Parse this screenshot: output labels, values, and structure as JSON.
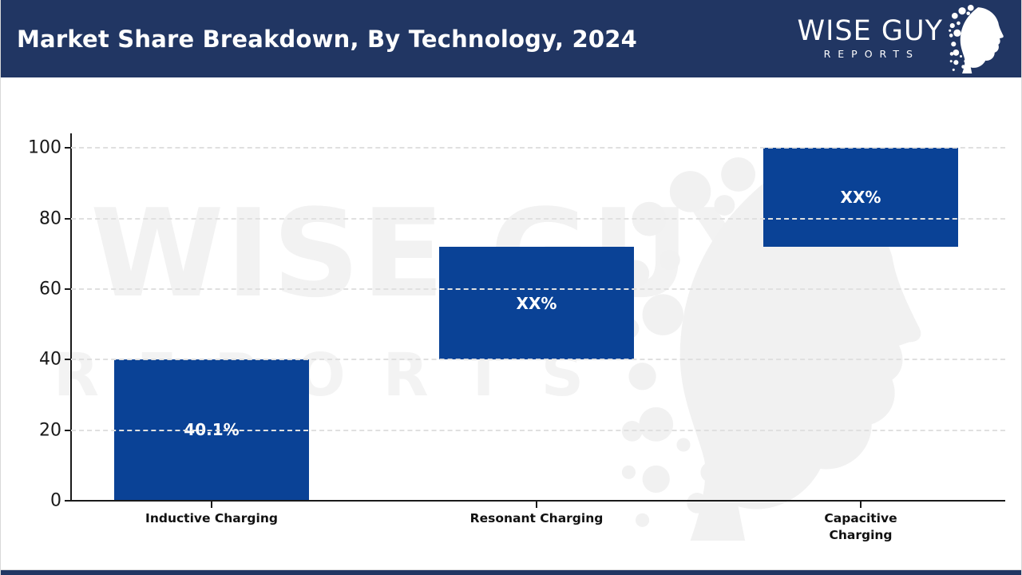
{
  "header": {
    "title": "Market Share Breakdown, By Technology, 2024",
    "brand": {
      "name": "WISE GUY",
      "subtitle": "REPORTS"
    }
  },
  "watermark": {
    "line1": "WISE GUY",
    "line2": "REPORTS"
  },
  "colors": {
    "header_navy": "#213663",
    "bar_blue": "#0a4296",
    "gridline_gray": "#e0e0e0",
    "watermark_gray": "#f2f2f2"
  },
  "chart_data": {
    "type": "bar",
    "subtype": "floating-stacked-waterfall",
    "title": "Market Share Breakdown, By Technology, 2024",
    "categories": [
      "Inductive Charging",
      "Resonant Charging",
      "Capacitive Charging"
    ],
    "bars": [
      {
        "category": "Inductive Charging",
        "start": 0,
        "end": 40.1,
        "label": "40.1%"
      },
      {
        "category": "Resonant Charging",
        "start": 40,
        "end": 72,
        "label": "XX%"
      },
      {
        "category": "Capacitive Charging",
        "start": 72,
        "end": 100,
        "label": "XX%"
      }
    ],
    "xlabel": "",
    "ylabel": "",
    "ylim": [
      0,
      100
    ],
    "yticks": [
      0,
      20,
      40,
      60,
      80,
      100
    ],
    "grid": "horizontal-dashed",
    "legend": "none",
    "bar_color": "#0a4296",
    "value_label_color": "#ffffff"
  }
}
